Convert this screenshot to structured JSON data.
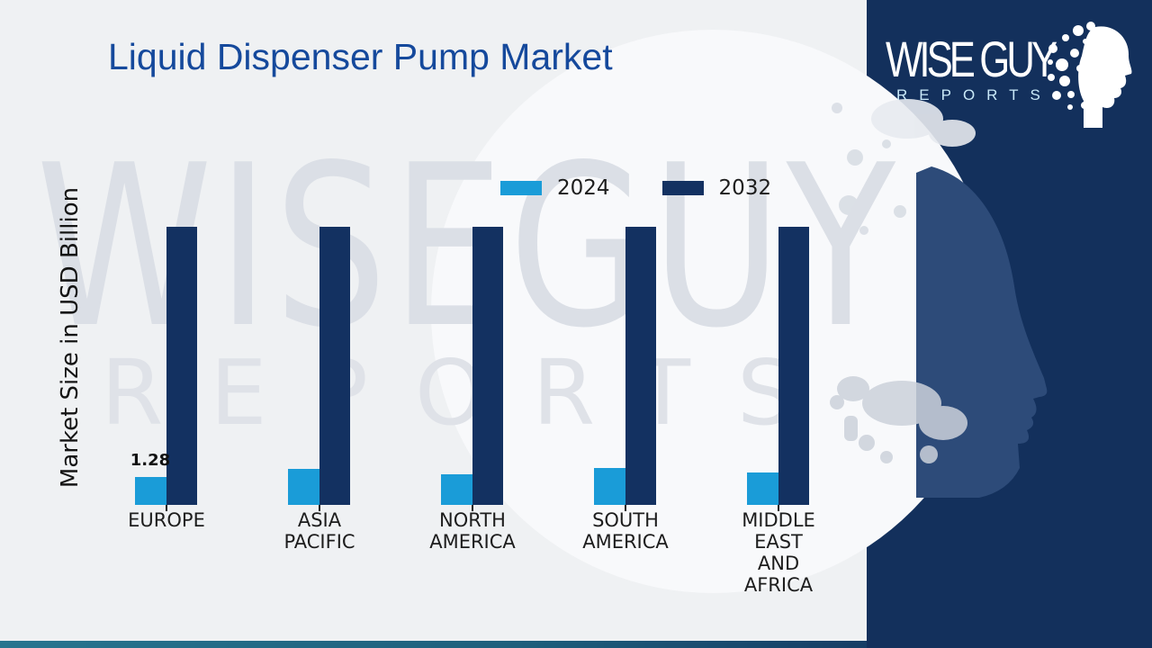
{
  "page": {
    "background": "#eff1f3",
    "bottom_strip_colors": [
      "#27758f",
      "#14325e"
    ]
  },
  "logo": {
    "brand": "WISE GUY",
    "sub": "REPORTS",
    "panel_color": "#13305c",
    "face_icon": "dotted-face-profile"
  },
  "watermark": {
    "line1": "WISEGUY",
    "line2": "REPORTS"
  },
  "chart_data": {
    "type": "bar",
    "title": "Liquid Dispenser Pump Market",
    "title_color": "#15499c",
    "xlabel": "",
    "ylabel": "Market Size in USD Billion",
    "categories": [
      "EUROPE",
      "ASIA\nPACIFIC",
      "NORTH\nAMERICA",
      "SOUTH\nAMERICA",
      "MIDDLE\nEAST\nAND\nAFRICA"
    ],
    "series": [
      {
        "name": "2024",
        "color": "#1a9cd8",
        "values": [
          1.28,
          1.65,
          1.4,
          1.7,
          1.5
        ]
      },
      {
        "name": "2032",
        "color": "#133161",
        "values": [
          12.7,
          12.7,
          12.7,
          12.7,
          12.7
        ]
      }
    ],
    "ylim": [
      0,
      12.7
    ],
    "grid": false,
    "legend_position": "top-right",
    "value_labels": [
      {
        "series": "2024",
        "category": "EUROPE",
        "text": "1.28"
      }
    ],
    "notes": "Only the Europe 2024 bar carries a printed value (1.28). All 2032 bars are drawn at uniform full height; their values are not labeled. 2024 values other than Europe are estimated from bar heights."
  }
}
